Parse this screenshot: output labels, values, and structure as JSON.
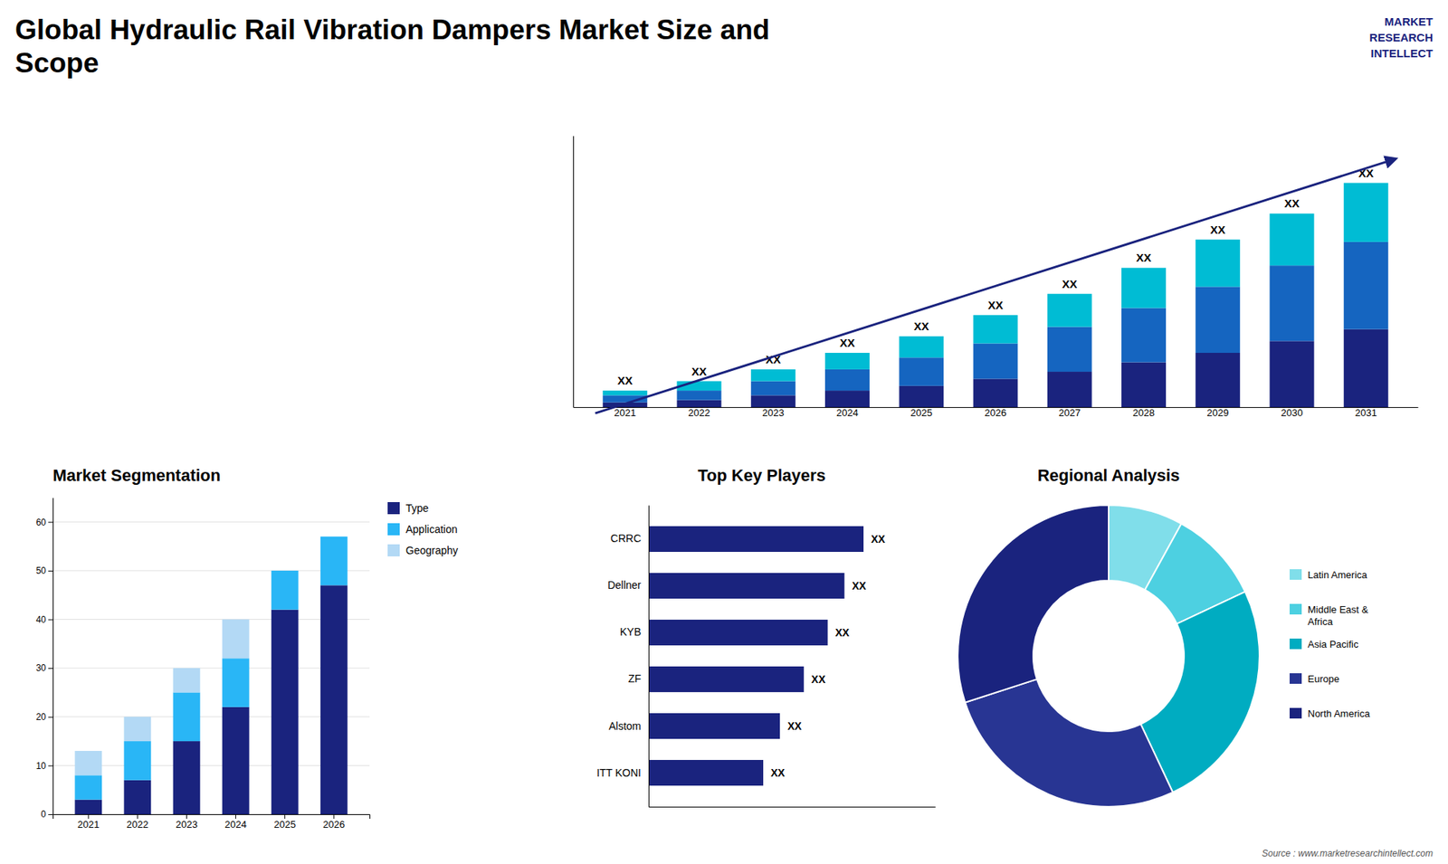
{
  "chart_data": [
    {
      "type": "bar",
      "title": "Global Hydraulic Rail Vibration Dampers Market Size and\nScope",
      "stacked": true,
      "categories": [
        "2021",
        "2022",
        "2023",
        "2024",
        "2025",
        "2026",
        "2027",
        "2028",
        "2029",
        "2030",
        "2031"
      ],
      "series": [
        {
          "color": "#1a237e",
          "values": [
            2,
            3,
            5,
            7,
            9,
            12,
            15,
            19,
            23,
            28,
            33
          ]
        },
        {
          "color": "#1565c0",
          "values": [
            3,
            4,
            6,
            9,
            12,
            15,
            19,
            23,
            28,
            32,
            37
          ]
        },
        {
          "color": "#00bcd4",
          "values": [
            2,
            4,
            5,
            7,
            9,
            12,
            14,
            17,
            20,
            22,
            25
          ],
          "value_labels": [
            "XX",
            "XX",
            "XX",
            "XX",
            "XX",
            "XX",
            "XX",
            "XX",
            "XX",
            "XX",
            "XX"
          ]
        }
      ],
      "ylim": [
        0,
        115
      ],
      "tick_labels": "x",
      "annotations": [
        "MARKET\nRESEARCH\nINTELLECT",
        "Source : www.marketresearchintellect.com"
      ]
    },
    {
      "type": "bar",
      "title": "Market Segmentation",
      "stacked": true,
      "categories": [
        "2021",
        "2022",
        "2023",
        "2024",
        "2025",
        "2026"
      ],
      "series": [
        {
          "name": "Type",
          "color": "#1a237e",
          "values": [
            3,
            7,
            15,
            22,
            42,
            47
          ]
        },
        {
          "name": "Application",
          "color": "#29b6f6",
          "values": [
            5,
            8,
            10,
            10,
            8,
            10
          ]
        },
        {
          "name": "Geography",
          "color": "#b3d9f5",
          "values": [
            5,
            5,
            5,
            8,
            0,
            0
          ]
        }
      ],
      "ylim": [
        0,
        65
      ],
      "yticks": [
        0,
        10,
        20,
        30,
        40,
        50,
        60
      ],
      "grid": true,
      "legend": "right"
    },
    {
      "type": "bar",
      "orientation": "horizontal",
      "title": "Top Key Players",
      "categories": [
        "CRRC",
        "Dellner",
        "KYB",
        "ZF",
        "Alstom",
        "ITT KONI"
      ],
      "values": [
        90,
        82,
        75,
        65,
        55,
        48
      ],
      "value_labels": [
        "XX",
        "XX",
        "XX",
        "XX",
        "XX",
        "XX"
      ],
      "color": "#1a237e",
      "xlim": [
        0,
        120
      ],
      "tick_labels": "y"
    },
    {
      "type": "donut",
      "title": "Regional Analysis",
      "categories": [
        "Latin America",
        "Middle East &\nAfrica",
        "Asia Pacific",
        "Europe",
        "North America"
      ],
      "values": [
        8,
        10,
        25,
        27,
        30
      ],
      "colors": [
        "#80deea",
        "#4dd0e1",
        "#00acc1",
        "#283593",
        "#1a237e"
      ],
      "legend": "right"
    }
  ]
}
